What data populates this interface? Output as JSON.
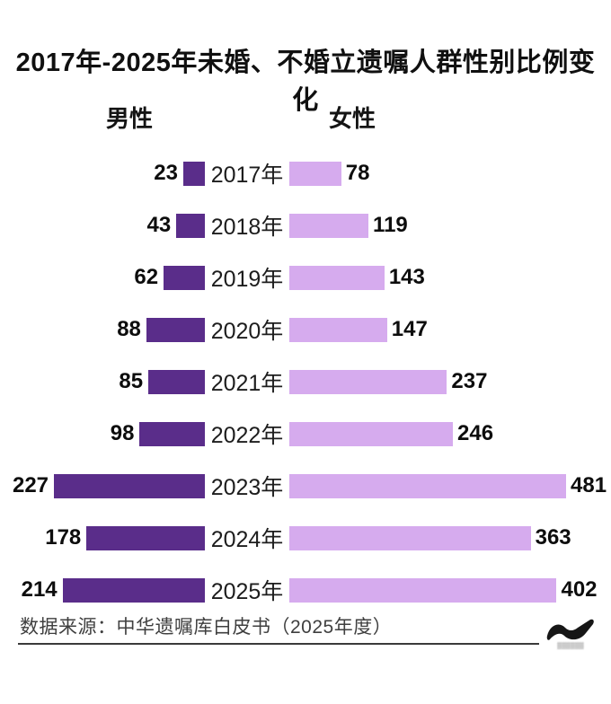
{
  "title": "2017年-2025年未婚、不婚立遗嘱人群性别比例变化",
  "legend": {
    "male_label": "男性",
    "female_label": "女性"
  },
  "source_note": "数据来源：中华遗嘱库白皮书（2025年度）",
  "watermark": {
    "icon": "wave-logo-icon",
    "caption": "▒▒▒▒▒▒"
  },
  "colors": {
    "male_bar": "#5a2d8a",
    "female_bar": "#d6abee",
    "title_text": "#101010",
    "source_text": "#3f3f3f"
  },
  "chart_data": {
    "type": "bar",
    "orientation": "horizontal-diverging",
    "title": "2017年-2025年未婚、不婚立遗嘱人群性别比例变化",
    "categories": [
      "2017年",
      "2018年",
      "2019年",
      "2020年",
      "2021年",
      "2022年",
      "2023年",
      "2024年",
      "2025年"
    ],
    "series": [
      {
        "name": "男性",
        "color": "#5a2d8a",
        "values": [
          23,
          43,
          62,
          88,
          85,
          98,
          227,
          178,
          214
        ]
      },
      {
        "name": "女性",
        "color": "#d6abee",
        "values": [
          78,
          119,
          143,
          147,
          237,
          246,
          481,
          363,
          402
        ]
      }
    ],
    "value_labels": true,
    "legend_position": "top",
    "grid": false,
    "axis_ticks": false
  }
}
